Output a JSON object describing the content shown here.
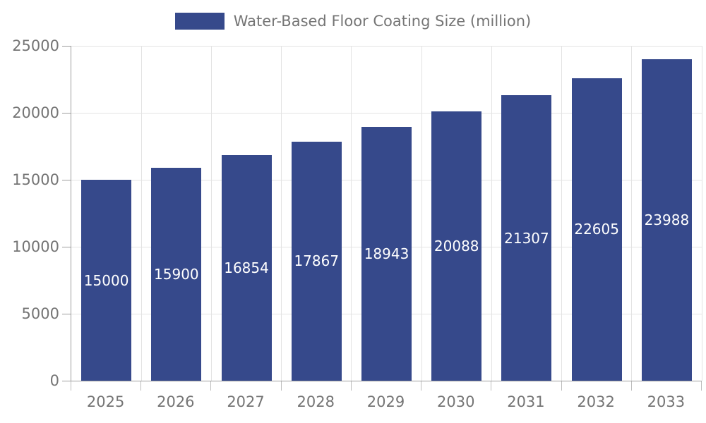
{
  "legend": {
    "label": "Water-Based Floor Coating Size (million)"
  },
  "chart_data": {
    "type": "bar",
    "title": "Water-Based Floor Coating Size (million)",
    "categories": [
      "2025",
      "2026",
      "2027",
      "2028",
      "2029",
      "2030",
      "2031",
      "2032",
      "2033"
    ],
    "values": [
      15000,
      15900,
      16854,
      17867,
      18943,
      20088,
      21307,
      22605,
      23988
    ],
    "xlabel": "",
    "ylabel": "",
    "ylim": [
      0,
      25000
    ],
    "yticks": [
      0,
      5000,
      10000,
      15000,
      20000,
      25000
    ],
    "grid": true,
    "legend_position": "top-center",
    "value_labels": "inside-center",
    "colors": {
      "bar": "#36498b",
      "bar_value_text": "#ffffff",
      "axis_text": "#757575",
      "axis_line": "#9e9e9e",
      "gridline": "#e3e3e3"
    }
  }
}
